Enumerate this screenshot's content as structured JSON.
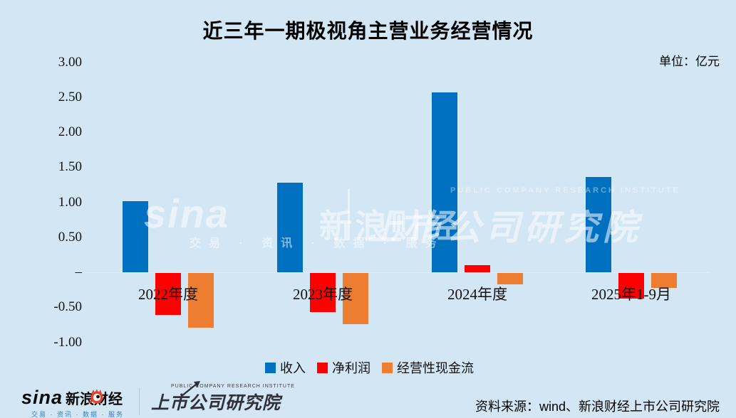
{
  "header": {
    "title": "近三年一期极视角主营业务经营情况",
    "unit_label": "单位：亿元"
  },
  "chart_data": {
    "type": "bar",
    "title": "近三年一期极视角主营业务经营情况",
    "unit": "亿元",
    "categories": [
      "2022年度",
      "2023年度",
      "2024年度",
      "2025年1-9月"
    ],
    "series": [
      {
        "name": "收入",
        "color": "#0070c0",
        "values": [
          1.02,
          1.28,
          2.57,
          1.36
        ]
      },
      {
        "name": "净利润",
        "color": "#ff0000",
        "values": [
          -0.6,
          -0.56,
          0.1,
          -0.37
        ]
      },
      {
        "name": "经营性现金流",
        "color": "#ed7d31",
        "values": [
          -0.78,
          -0.73,
          -0.16,
          -0.21
        ]
      }
    ],
    "ylim": [
      -1.0,
      3.0
    ],
    "yticks": [
      {
        "v": 3.0,
        "label": "3.00"
      },
      {
        "v": 2.5,
        "label": "2.50"
      },
      {
        "v": 2.0,
        "label": "2.00"
      },
      {
        "v": 1.5,
        "label": "1.50"
      },
      {
        "v": 1.0,
        "label": "1.00"
      },
      {
        "v": 0.5,
        "label": "0.50"
      },
      {
        "v": 0.0,
        "label": "–"
      },
      {
        "v": -0.5,
        "label": "-0.50"
      },
      {
        "v": -1.0,
        "label": "-1.00"
      }
    ],
    "grid": "zero-line-only",
    "legend_position": "bottom-center"
  },
  "colors": {
    "background": "#d3e6f4",
    "revenue": "#0070c0",
    "net_profit": "#ff0000",
    "cash_flow": "#ed7d31"
  },
  "watermark": {
    "sina_word": "sina",
    "sina_brand": "新浪财经",
    "sina_tagline": "交易 · 资讯 · 数据 · 服务",
    "institute": "上市公司研究院",
    "institute_en": "PUBLIC COMPANY RESEARCH INSTITUTE"
  },
  "footer": {
    "sina_word": "sina",
    "sina_brand": "新浪财经",
    "sina_tagline": "交易 · 资讯 · 数据 · 服务",
    "institute_en": "PUBLIC COMPANY RESEARCH INSTITUTE",
    "institute_zh": "上市公司研究院",
    "source": "资料来源：wind、新浪财经上市公司研究院"
  }
}
